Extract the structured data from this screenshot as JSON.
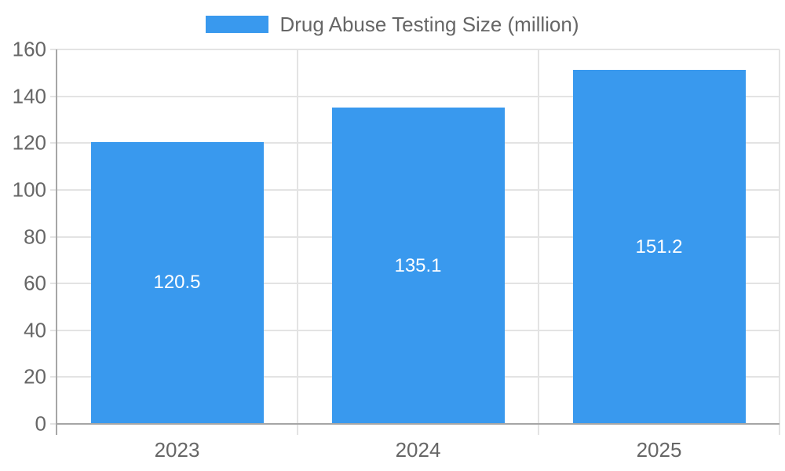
{
  "legend": {
    "swatch_color": "#3999ee"
  },
  "chart_data": {
    "type": "bar",
    "title": "",
    "xlabel": "",
    "ylabel": "",
    "categories": [
      "2023",
      "2024",
      "2025"
    ],
    "series": [
      {
        "name": "Drug Abuse Testing Size (million)",
        "values": [
          120.5,
          135.1,
          151.2
        ]
      }
    ],
    "value_labels": [
      "120.5",
      "135.1",
      "151.2"
    ],
    "ylim": [
      0,
      160
    ],
    "yticks": [
      0,
      20,
      40,
      60,
      80,
      100,
      120,
      140,
      160
    ],
    "grid": true,
    "legend_position": "top-center",
    "colors": {
      "bar": "#3999ee",
      "value_label": "#ffffff",
      "axis_text": "#666666",
      "axis_line": "#a6a6a6",
      "gridline": "#e3e3e3",
      "background": "#ffffff"
    }
  }
}
